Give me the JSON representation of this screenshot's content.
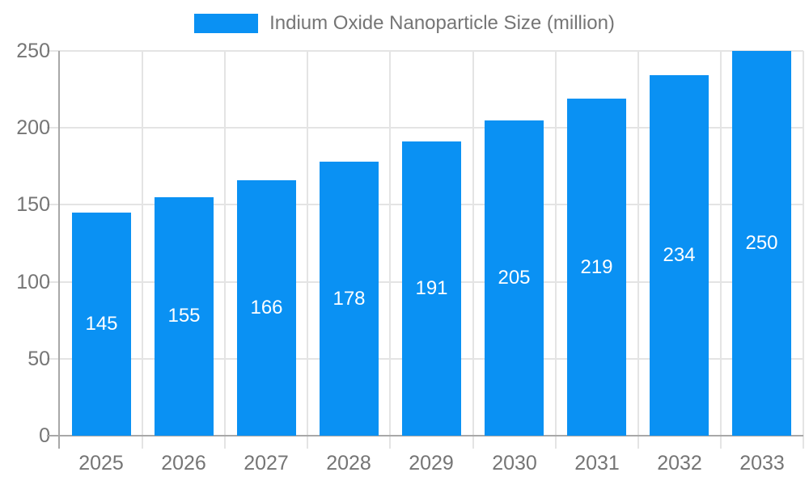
{
  "legend": {
    "label": "Indium Oxide Nanoparticle Size (million)"
  },
  "chart_data": {
    "type": "bar",
    "title": "Indium Oxide Nanoparticle Size (million)",
    "categories": [
      "2025",
      "2026",
      "2027",
      "2028",
      "2029",
      "2030",
      "2031",
      "2032",
      "2033"
    ],
    "series": [
      {
        "name": "Indium Oxide Nanoparticle Size (million)",
        "values": [
          145,
          155,
          166,
          178,
          191,
          205,
          219,
          234,
          250
        ]
      }
    ],
    "xlabel": "",
    "ylabel": "",
    "ylim": [
      0,
      250
    ],
    "yticks": [
      0,
      50,
      100,
      150,
      200,
      250
    ],
    "grid": "on",
    "legend_position": "top-center",
    "value_labels": "inside-center"
  },
  "colors": {
    "bar": "#0a91f3",
    "text": "#757575",
    "bar_label": "#ffffff",
    "grid": "#e4e4e4",
    "axis": "#a8a8a8",
    "background": "#ffffff"
  }
}
